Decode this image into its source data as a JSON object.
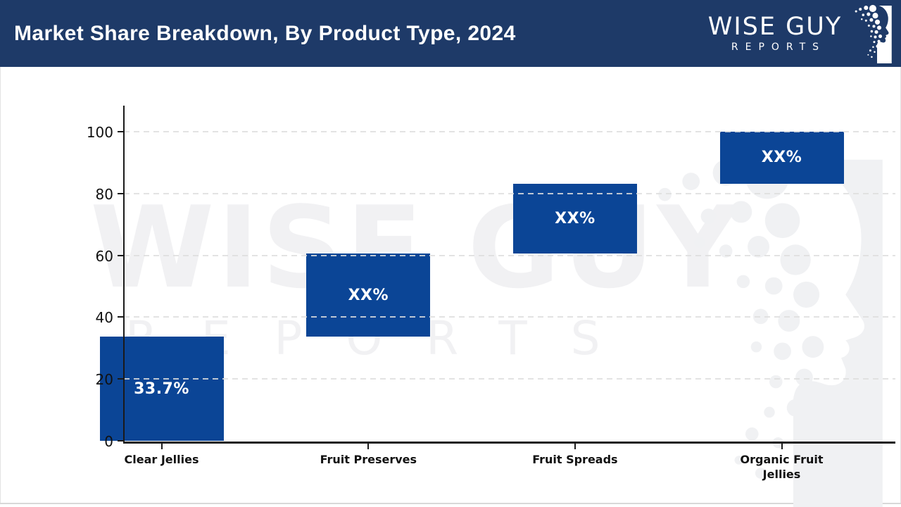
{
  "header": {
    "title": "Market Share Breakdown, By Product Type, 2024",
    "logo": {
      "wordmark": "WISE GUY",
      "subtext": "REPORTS"
    }
  },
  "watermark": {
    "wordmark": "WISE GUY",
    "subtext": "REPORTS"
  },
  "chart_data": {
    "type": "bar",
    "subtype": "floating-waterfall",
    "title": "Market Share Breakdown, By Product Type, 2024",
    "xlabel": "",
    "ylabel": "",
    "categories": [
      "Clear Jellies",
      "Fruit Preserves",
      "Fruit Spreads",
      "Organic Fruit Jellies"
    ],
    "segments": [
      {
        "category": "Clear Jellies",
        "start": 0,
        "end": 33.7,
        "label": "33.7%"
      },
      {
        "category": "Fruit Preserves",
        "start": 33.7,
        "end": 60.5,
        "label": "XX%"
      },
      {
        "category": "Fruit Spreads",
        "start": 60.5,
        "end": 83.2,
        "label": "XX%"
      },
      {
        "category": "Organic Fruit Jellies",
        "start": 83.2,
        "end": 100,
        "label": "XX%"
      }
    ],
    "yticks": [
      0,
      20,
      40,
      60,
      80,
      100
    ],
    "ylim": [
      0,
      107
    ],
    "grid": "dashed-horizontal",
    "legend": "none"
  },
  "colors": {
    "header_bg": "#1e3a68",
    "bar_fill": "#0b4596",
    "bar_label": "#ffffff",
    "axis": "#1a1a1a",
    "grid": "#dedede",
    "watermark": "#f1f1f3",
    "bottom_line": "#d8d8d8"
  }
}
